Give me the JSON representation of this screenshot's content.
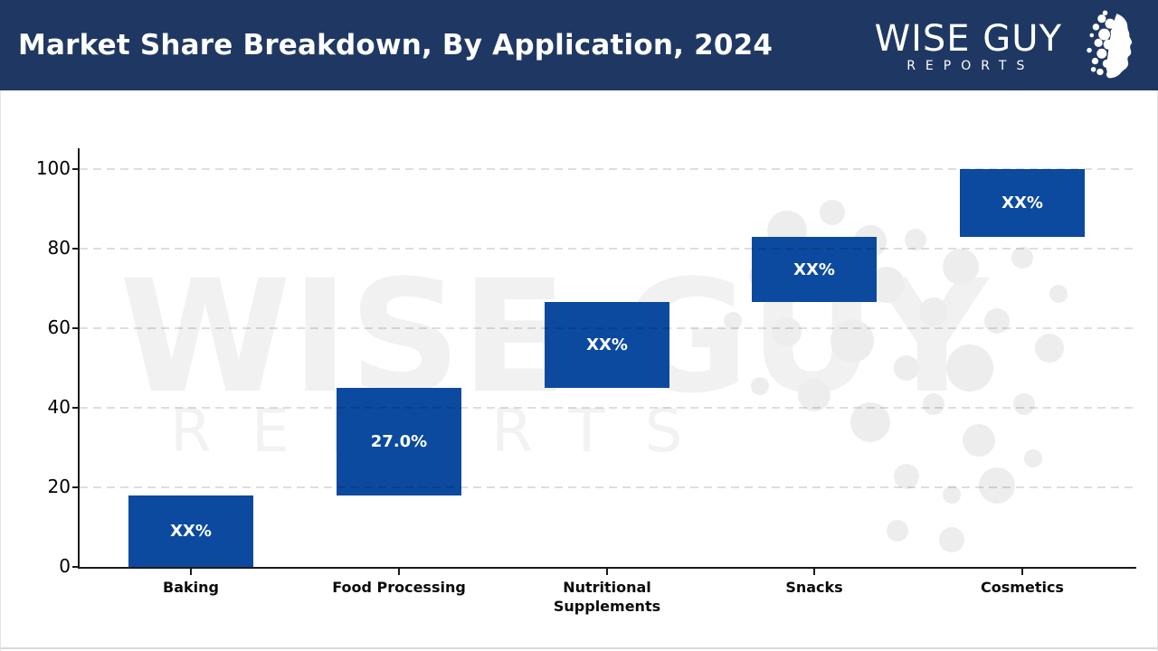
{
  "header": {
    "title": "Market Share Breakdown, By Application, 2024",
    "logo": {
      "brand": "WISE GUY",
      "sub": "REPORTS"
    }
  },
  "watermark": {
    "brand": "WISE GUY",
    "sub": "REPORTS"
  },
  "chart_data": {
    "type": "bar",
    "subtype": "waterfall",
    "title": "Market Share Breakdown, By Application, 2024",
    "xlabel": "",
    "ylabel": "",
    "ylim": [
      0,
      100
    ],
    "yticks": [
      0,
      20,
      40,
      60,
      80,
      100
    ],
    "grid": "horizontal-dashed",
    "legend": "none",
    "categories": [
      "Baking",
      "Food Processing",
      "Nutritional Supplements",
      "Snacks",
      "Cosmetics"
    ],
    "segments": [
      {
        "category": "Baking",
        "start": 0,
        "end": 18,
        "value_label": "XX%"
      },
      {
        "category": "Food Processing",
        "start": 18,
        "end": 45,
        "value_label": "27.0%"
      },
      {
        "category": "Nutritional Supplements",
        "start": 45,
        "end": 66.5,
        "value_label": "XX%"
      },
      {
        "category": "Snacks",
        "start": 66.5,
        "end": 83,
        "value_label": "XX%"
      },
      {
        "category": "Cosmetics",
        "start": 83,
        "end": 100,
        "value_label": "XX%"
      }
    ]
  },
  "colors": {
    "header_bg": "#1F3863",
    "bar": "#0B4A9E",
    "bar_label": "#FFFFFF",
    "axis": "#1A1A1A",
    "tick_label": "#000000",
    "watermark": "#F1F1F1",
    "page_bg": "#FFFFFF"
  }
}
